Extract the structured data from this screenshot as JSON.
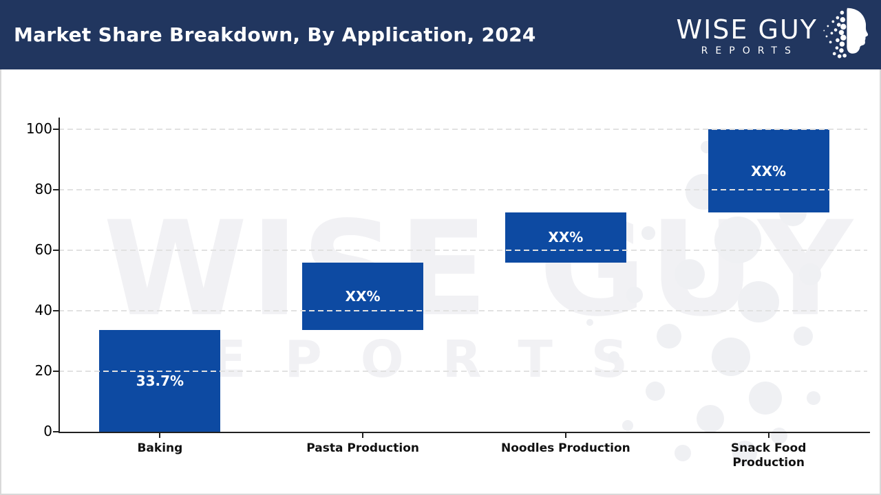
{
  "header": {
    "title": "Market Share Breakdown, By Application, 2024",
    "logo": {
      "wordmark": "WISE GUY",
      "subtext": "REPORTS"
    }
  },
  "watermark": {
    "wordmark": "WISE GUY",
    "subtext": "REPORTS"
  },
  "chart_data": {
    "type": "bar",
    "subtype": "waterfall",
    "title": "Market Share Breakdown, By Application, 2024",
    "categories": [
      "Baking",
      "Pasta Production",
      "Noodles Production",
      "Snack Food Production"
    ],
    "categories_display": [
      "Baking",
      "Pasta Production",
      "Noodles Production",
      "Snack Food\nProduction"
    ],
    "segments": [
      {
        "category": "Baking",
        "start": 0,
        "end": 33.7,
        "value_label": "33.7%"
      },
      {
        "category": "Pasta Production",
        "start": 33.7,
        "end": 56,
        "value_label": "XX%"
      },
      {
        "category": "Noodles Production",
        "start": 56,
        "end": 72.5,
        "value_label": "XX%"
      },
      {
        "category": "Snack Food Production",
        "start": 72.5,
        "end": 100,
        "value_label": "XX%"
      }
    ],
    "xlabel": "",
    "ylabel": "",
    "ylim": [
      0,
      100
    ],
    "yticks": [
      0,
      20,
      40,
      60,
      80,
      100
    ],
    "grid": "horizontal-dashed",
    "legend": "none",
    "bar_color": "#0d4aa2",
    "bar_label_color": "#ffffff"
  },
  "colors": {
    "header_bg": "#21365f",
    "bar": "#0d4aa2",
    "axis": "#202020",
    "gridline": "#e1e1e1",
    "watermark": "#f1f1f4",
    "page_bg": "#ffffff",
    "border": "#d9d9d9"
  }
}
